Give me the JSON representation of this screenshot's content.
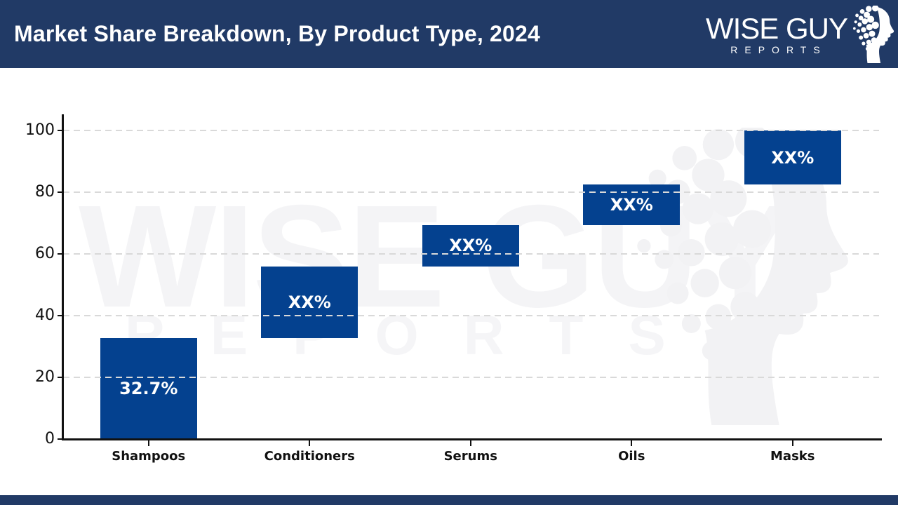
{
  "header": {
    "title": "Market Share Breakdown, By Product Type, 2024",
    "bg_color": "#213A66",
    "logo": {
      "line1": "WISE GUY",
      "line2": "REPORTS"
    }
  },
  "watermark": {
    "line1": "WISE GUY",
    "line2": "REPORTS"
  },
  "chart_data": {
    "type": "bar",
    "subtype": "waterfall-floating-bars",
    "title": "Market Share Breakdown, By Product Type, 2024",
    "categories": [
      "Shampoos",
      "Conditioners",
      "Serums",
      "Oils",
      "Masks"
    ],
    "segments": [
      [
        0,
        32.7
      ],
      [
        32.7,
        56.0
      ],
      [
        56.0,
        69.3
      ],
      [
        69.4,
        82.5
      ],
      [
        82.4,
        100.0
      ]
    ],
    "bar_labels": [
      "32.7%",
      "XX%",
      "XX%",
      "XX%",
      "XX%"
    ],
    "bar_color": "#04418F",
    "bar_label_color": "#FFFFFF",
    "xlabel": "",
    "ylabel": "",
    "ylim": [
      0,
      100
    ],
    "yticks": [
      0,
      20,
      40,
      60,
      80,
      100
    ],
    "grid": "horizontal dashed light-gray at 20/40/60/80/100, drawn over bars",
    "legend": "none"
  },
  "footer": {
    "bg_color": "#213A66"
  }
}
